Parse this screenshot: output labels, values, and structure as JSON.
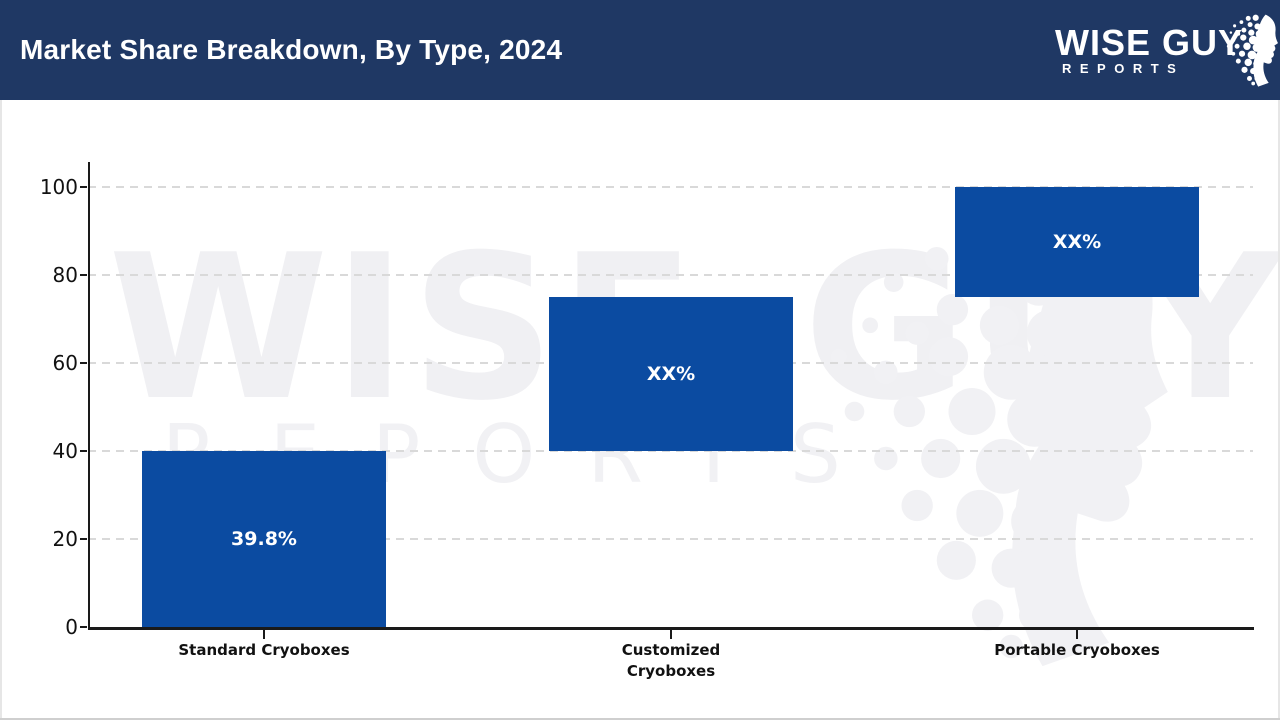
{
  "header": {
    "title": "Market Share Breakdown, By Type, 2024",
    "background_color": "#1F3864",
    "logo": {
      "line1": "WISE GUY",
      "line2": "REPORTS"
    }
  },
  "watermark": {
    "line1": "WISE GUY",
    "line2": "REPORTS"
  },
  "chart_data": {
    "type": "bar",
    "subtype": "floating-segment (waterfall-style) market share bars",
    "title": "Market Share Breakdown, By Type, 2024",
    "categories": [
      "Standard Cryoboxes",
      "Customized\nCryoboxes",
      "Portable Cryoboxes"
    ],
    "bars": [
      {
        "category": "Standard Cryoboxes",
        "start": 0,
        "end": 40,
        "label": "39.8%"
      },
      {
        "category": "Customized\nCryoboxes",
        "start": 40,
        "end": 75,
        "label": "XX%"
      },
      {
        "category": "Portable Cryoboxes",
        "start": 75,
        "end": 100,
        "label": "XX%"
      }
    ],
    "xlabel": "",
    "ylabel": "",
    "ylim": [
      0,
      105
    ],
    "yticks": [
      0,
      20,
      40,
      60,
      80,
      100
    ],
    "grid": "horizontal dashed gridlines",
    "legend": "none",
    "bar_color": "#0B4BA1",
    "bar_label_color": "#FFFFFF",
    "axis_color": "#1a1a1a",
    "grid_color": "#d9d9d9"
  }
}
